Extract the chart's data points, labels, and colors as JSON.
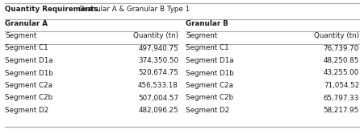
{
  "title_bold": "Quantity Requirements.",
  "title_normal": " Granular A & Granular B Type 1",
  "granular_a_header": "Granular A",
  "granular_b_header": "Granular B",
  "col_headers": [
    "Segment",
    "Quantity (tn)"
  ],
  "segments": [
    "Segment C1",
    "Segment D1a",
    "Segment D1b",
    "Segment C2a",
    "Segment C2b",
    "Segment D2"
  ],
  "granular_a_values": [
    "497,940.75",
    "374,350.50",
    "520,674.75",
    "456,533.18",
    "507,004.57",
    "482,096.25"
  ],
  "granular_b_values": [
    "76,739.70",
    "48,250.85",
    "43,255.00",
    "71,054.52",
    "65,797.33",
    "58,217.95"
  ],
  "bg_color": "#ffffff",
  "border_color": "#aaaaaa",
  "text_color": "#1a1a1a",
  "fig_width": 4.51,
  "fig_height": 1.62,
  "dpi": 100,
  "fontsize": 6.3,
  "title_fontsize": 6.3
}
